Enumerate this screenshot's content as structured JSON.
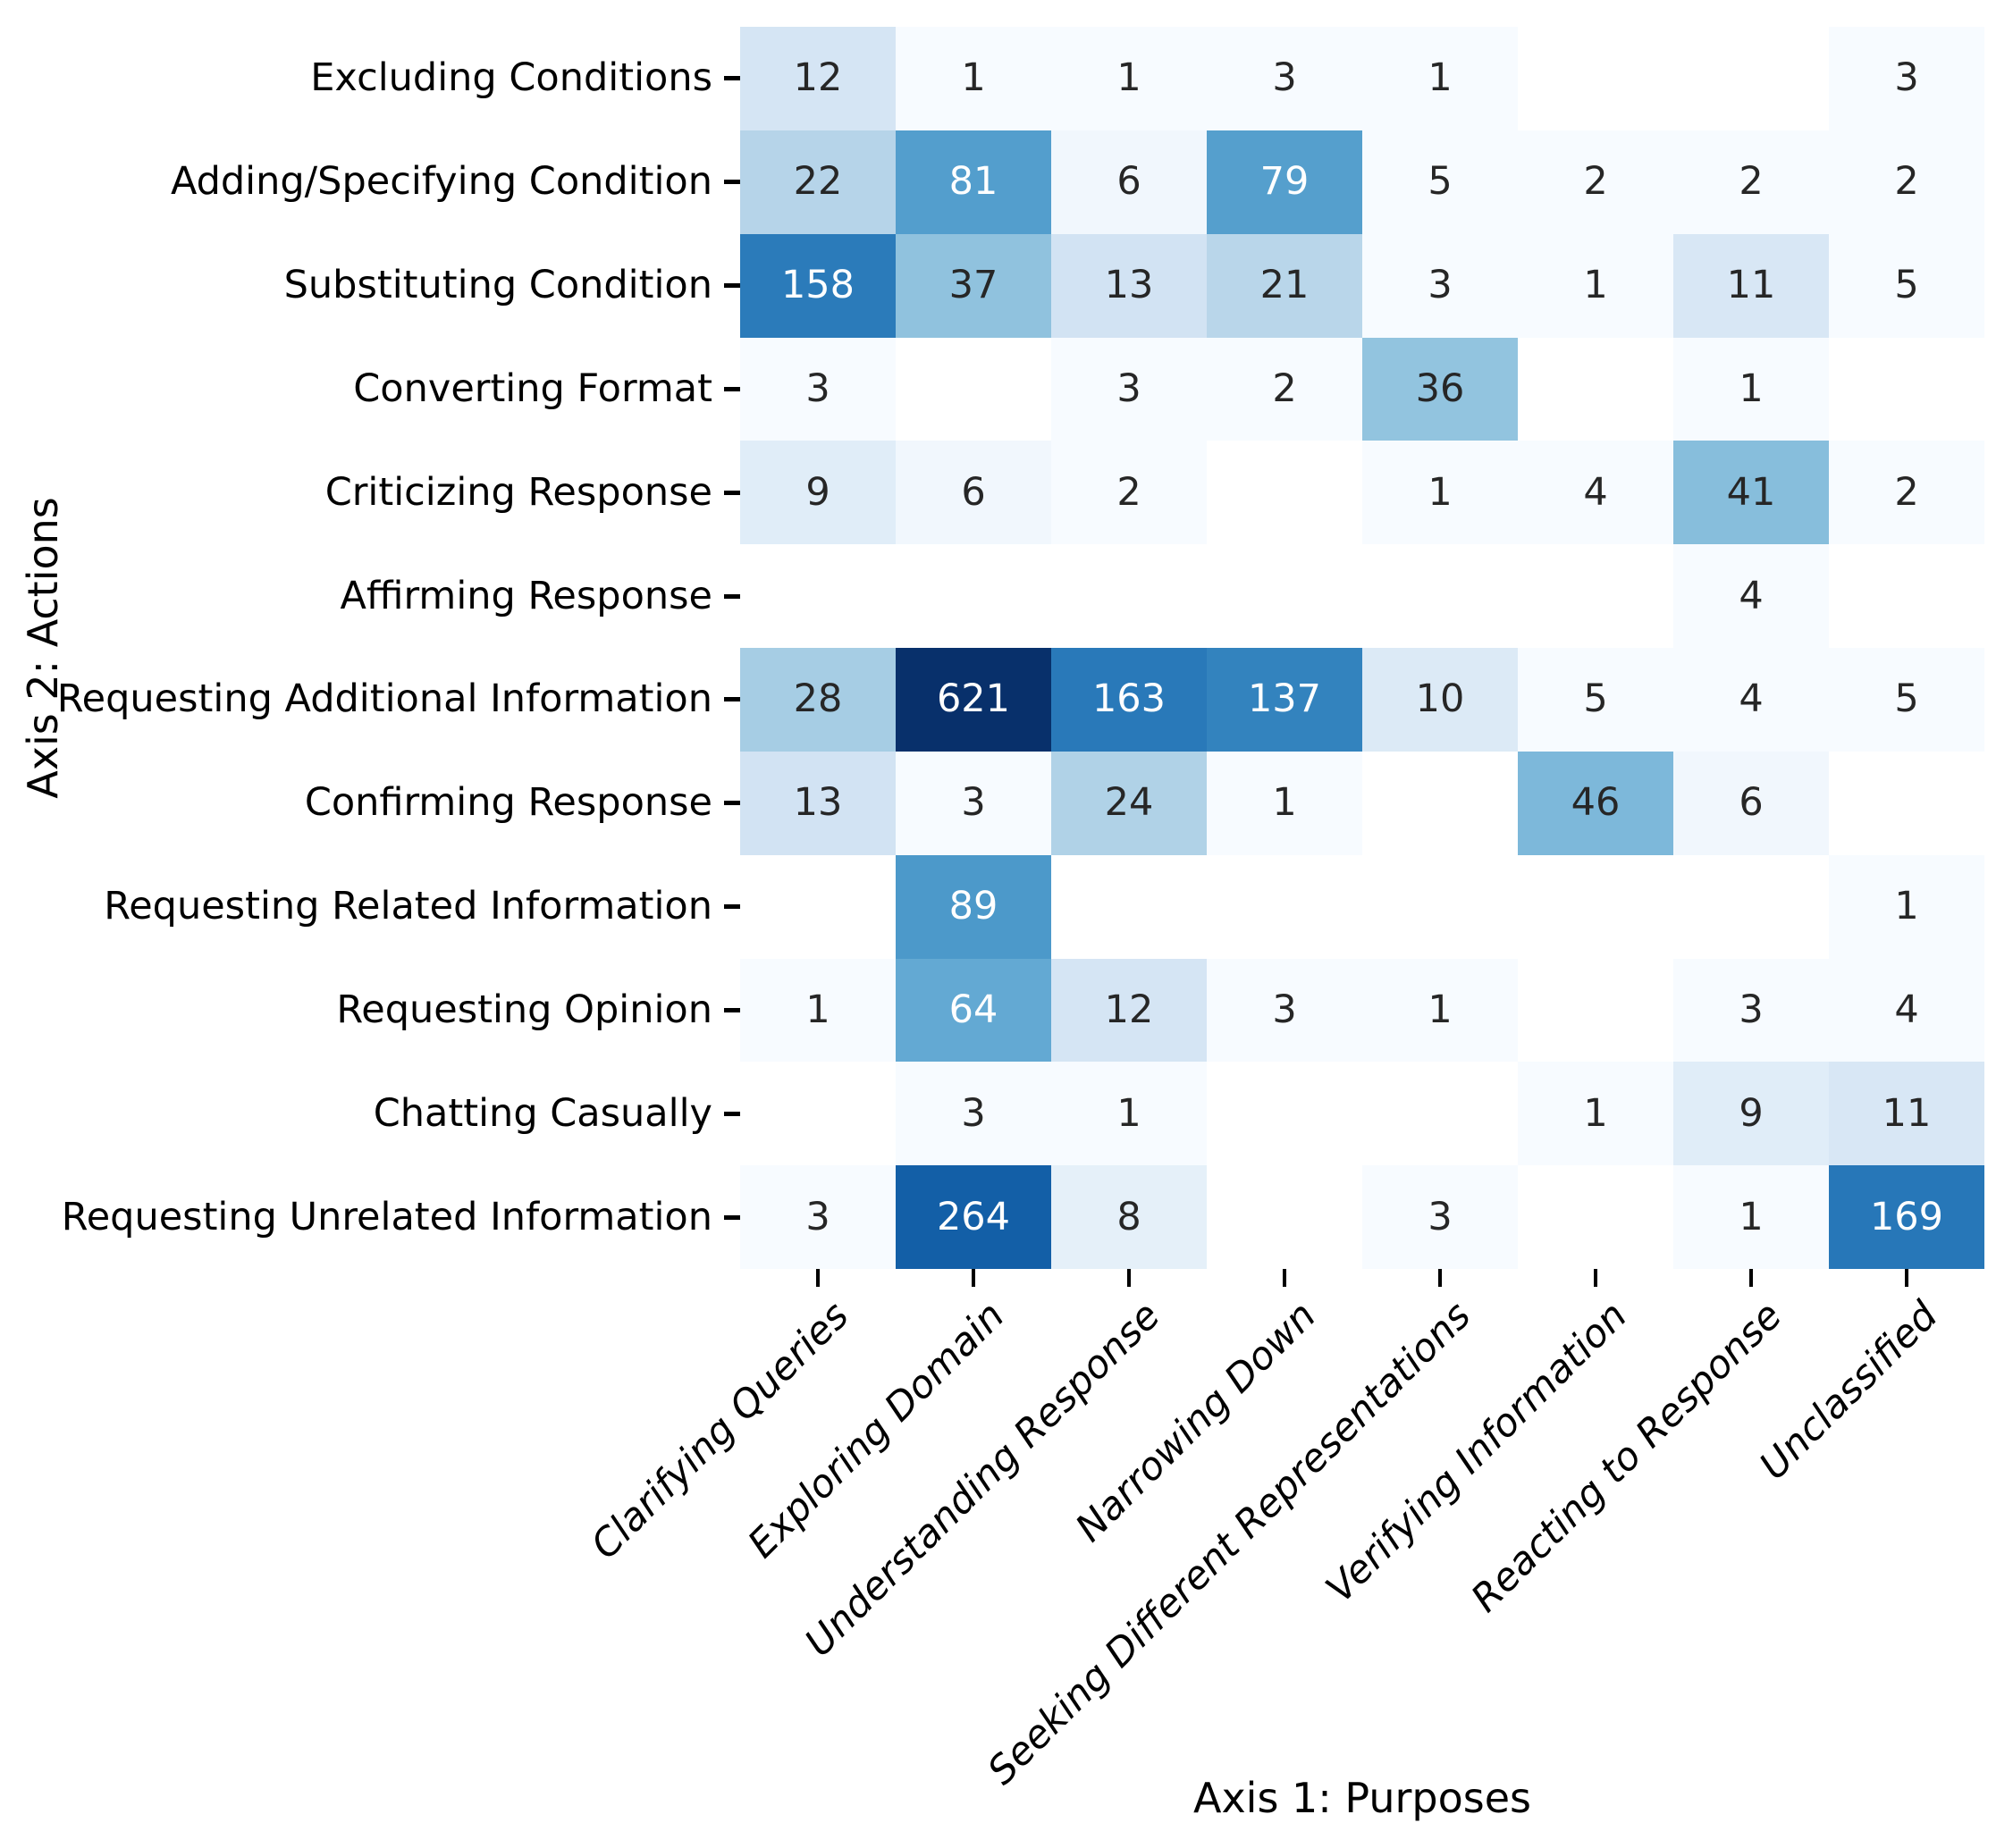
{
  "chart_data": {
    "type": "heatmap",
    "title": "",
    "xlabel": "Axis 1: Purposes",
    "ylabel": "Axis 2: Actions",
    "columns": [
      "Clarifying Queries",
      "Exploring Domain",
      "Understanding Response",
      "Narrowing Down",
      "Seeking Different Representations",
      "Verifying Information",
      "Reacting to Response",
      "Unclassified"
    ],
    "rows": [
      "Excluding Conditions",
      "Adding/Specifying Condition",
      "Substituting Condition",
      "Converting Format",
      "Criticizing Response",
      "Affirming Response",
      "Requesting Additional Information",
      "Confirming Response",
      "Requesting Related Information",
      "Requesting Opinion",
      "Chatting Casually",
      "Requesting Unrelated Information"
    ],
    "values": [
      [
        12,
        1,
        1,
        3,
        1,
        null,
        null,
        3
      ],
      [
        22,
        81,
        6,
        79,
        5,
        2,
        2,
        2
      ],
      [
        158,
        37,
        13,
        21,
        3,
        1,
        11,
        5
      ],
      [
        3,
        null,
        3,
        2,
        36,
        null,
        1,
        null
      ],
      [
        9,
        6,
        2,
        null,
        1,
        4,
        41,
        2
      ],
      [
        null,
        null,
        null,
        null,
        null,
        null,
        4,
        null
      ],
      [
        28,
        621,
        163,
        137,
        10,
        5,
        4,
        5
      ],
      [
        13,
        3,
        24,
        1,
        null,
        46,
        6,
        null
      ],
      [
        null,
        89,
        null,
        null,
        null,
        null,
        null,
        1
      ],
      [
        1,
        64,
        12,
        3,
        1,
        null,
        3,
        4
      ],
      [
        null,
        3,
        1,
        null,
        null,
        1,
        9,
        11
      ],
      [
        3,
        264,
        8,
        null,
        3,
        null,
        1,
        169
      ]
    ],
    "vmax": 621,
    "grid_lines": "off",
    "legend": "none",
    "colormap": {
      "name": "Blues",
      "stops": [
        "#f7fbff",
        "#deebf7",
        "#c6dbef",
        "#9ecae1",
        "#6baed6",
        "#4292c6",
        "#2171b5",
        "#08519c",
        "#08306b"
      ],
      "missing_color": "#ffffff",
      "norm": "log",
      "log_vmin_fit": 5.25
    },
    "annotation": {
      "dark_text": "#262626",
      "light_text": "#ffffff",
      "light_text_threshold": 0.5
    }
  }
}
